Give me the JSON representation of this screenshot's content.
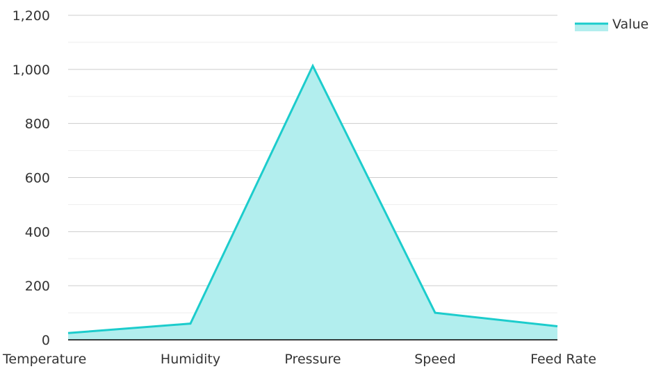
{
  "chart_data": {
    "type": "area",
    "categories": [
      "Temperature",
      "Humidity",
      "Pressure",
      "Speed",
      "Feed Rate"
    ],
    "series": [
      {
        "name": "Value",
        "values": [
          25,
          60,
          1013,
          100,
          50
        ],
        "color": "#1ccccc",
        "fill_color": "#b2eeee"
      }
    ],
    "title": "",
    "xlabel": "",
    "ylabel": "",
    "ylim": [
      0,
      1200
    ],
    "yticks": [
      0,
      200,
      400,
      600,
      800,
      1000,
      1200
    ],
    "ytick_labels": [
      "0",
      "200",
      "400",
      "600",
      "800",
      "1,000",
      "1,200"
    ],
    "grid": true,
    "minor_grid": true,
    "legend_position": "top-right",
    "colors": {
      "grid": "#cccccc",
      "axis": "#000000",
      "text": "#333333"
    }
  }
}
